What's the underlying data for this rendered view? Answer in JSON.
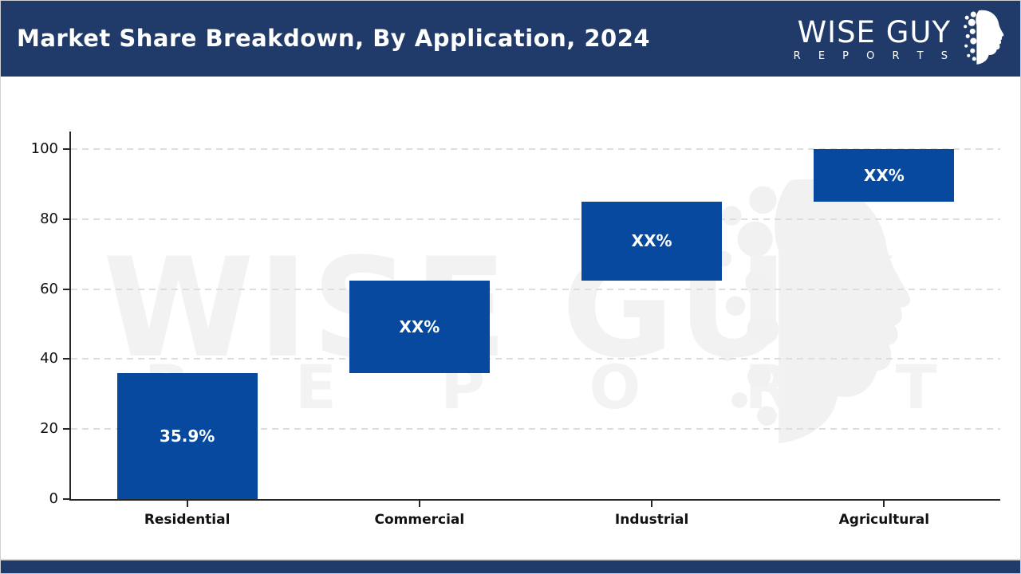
{
  "header": {
    "title": "Market Share Breakdown, By Application, 2024",
    "brand": {
      "name": "WISE GUY",
      "sub": "R E P O R T S"
    }
  },
  "watermark": {
    "line1": "WISE GUY",
    "line2": "R E P O R T S"
  },
  "chart_data": {
    "type": "bar",
    "subtype": "waterfall-floating-bars",
    "title": "Market Share Breakdown, By Application, 2024",
    "categories": [
      "Residential",
      "Commercial",
      "Industrial",
      "Agricultural"
    ],
    "segments": [
      {
        "category": "Residential",
        "start": 0,
        "end": 35.9,
        "label": "35.9%"
      },
      {
        "category": "Commercial",
        "start": 35.9,
        "end": 62.5,
        "label": "XX%"
      },
      {
        "category": "Industrial",
        "start": 62.5,
        "end": 85.0,
        "label": "XX%"
      },
      {
        "category": "Agricultural",
        "start": 85.0,
        "end": 100.0,
        "label": "XX%"
      }
    ],
    "xlabel": "",
    "ylabel": "",
    "ylim": [
      0,
      100
    ],
    "yticks": [
      0,
      20,
      40,
      60,
      80,
      100
    ],
    "grid": "horizontal dashed",
    "legend": "none",
    "bar_color": "#07499e",
    "bar_label_color": "#ffffff"
  },
  "colors": {
    "header_bg": "#203a6a",
    "footer_bg": "#203a6a",
    "bar": "#07499e",
    "grid": "#dedede",
    "axis": "#262626",
    "watermark": "#f2f2f2",
    "page_border": "#cfcfcf"
  }
}
